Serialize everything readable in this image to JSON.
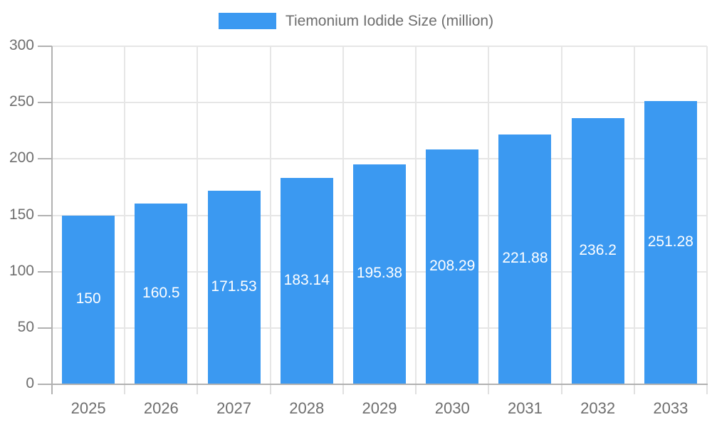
{
  "legend": {
    "label": "Tiemonium Iodide Size (million)",
    "swatch_color": "#3B99F1"
  },
  "chart_data": {
    "type": "bar",
    "title": "Tiemonium Iodide Size (million)",
    "categories": [
      "2025",
      "2026",
      "2027",
      "2028",
      "2029",
      "2030",
      "2031",
      "2032",
      "2033"
    ],
    "values": [
      150,
      160.5,
      171.53,
      183.14,
      195.38,
      208.29,
      221.88,
      236.2,
      251.28
    ],
    "value_labels": [
      "150",
      "160.5",
      "171.53",
      "183.14",
      "195.38",
      "208.29",
      "221.88",
      "236.2",
      "251.28"
    ],
    "xlabel": "",
    "ylabel": "",
    "ylim": [
      0,
      300
    ],
    "ytick_step": 50,
    "ytick_labels": [
      "0",
      "50",
      "100",
      "150",
      "200",
      "250",
      "300"
    ],
    "grid": true,
    "legend_position": "top-center",
    "bar_color": "#3B99F1",
    "bar_value_label_color": "#ffffff",
    "axis_text_color": "#6e6e6e",
    "gridline_color": "#e6e6e6",
    "axis_line_color": "#b1b1b1"
  }
}
